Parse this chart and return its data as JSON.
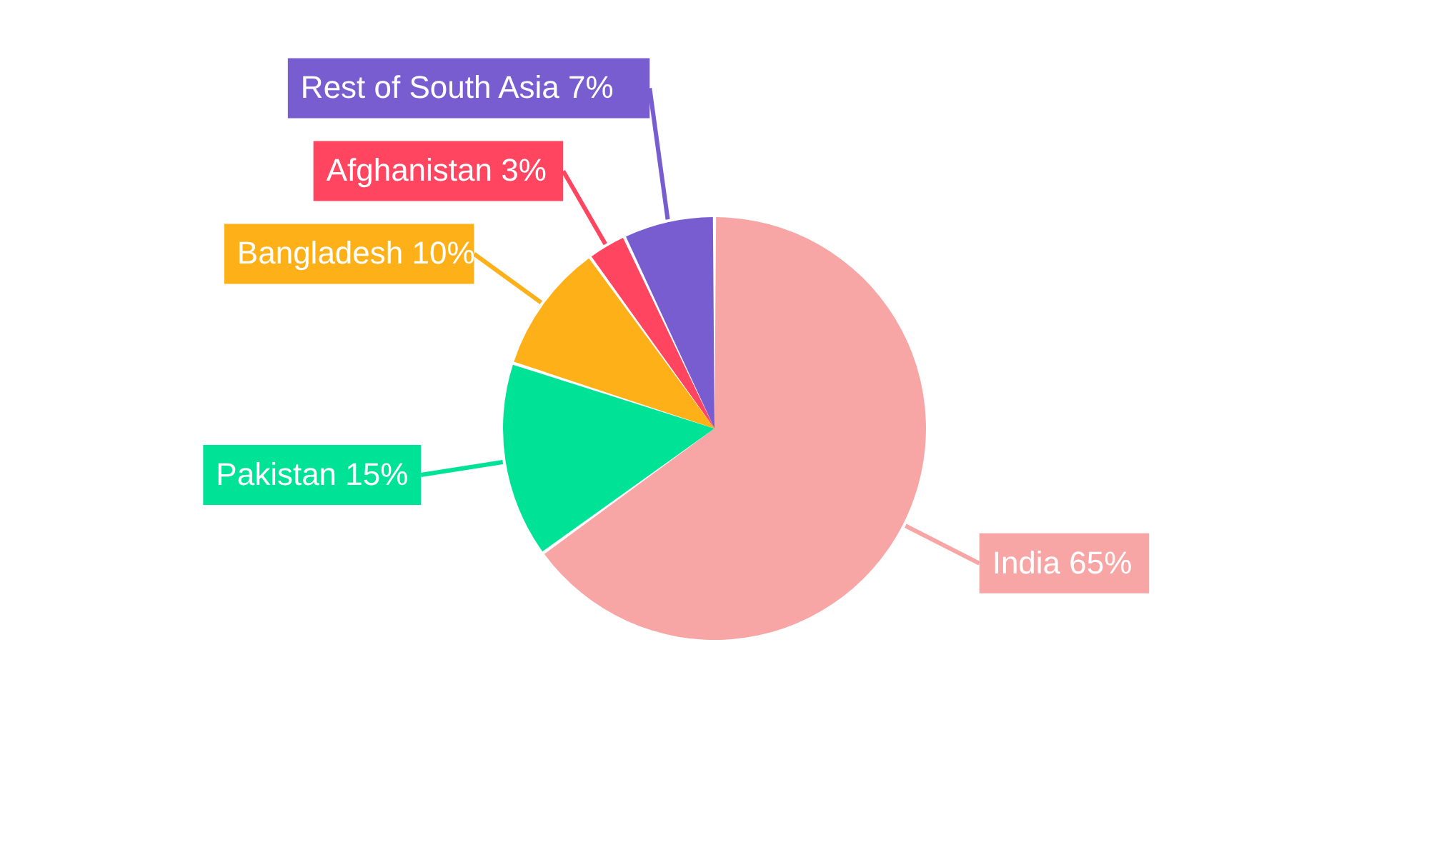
{
  "chart_data": {
    "type": "pie",
    "categories": [
      "India",
      "Pakistan",
      "Bangladesh",
      "Afghanistan",
      "Rest of South Asia"
    ],
    "values": [
      65,
      15,
      10,
      3,
      7
    ],
    "value_labels": [
      "65%",
      "15%",
      "10%",
      "3%",
      "7%"
    ],
    "colors": [
      "#f8a5a5",
      "#00e396",
      "#feb019",
      "#ff4560",
      "#775dd0"
    ]
  }
}
